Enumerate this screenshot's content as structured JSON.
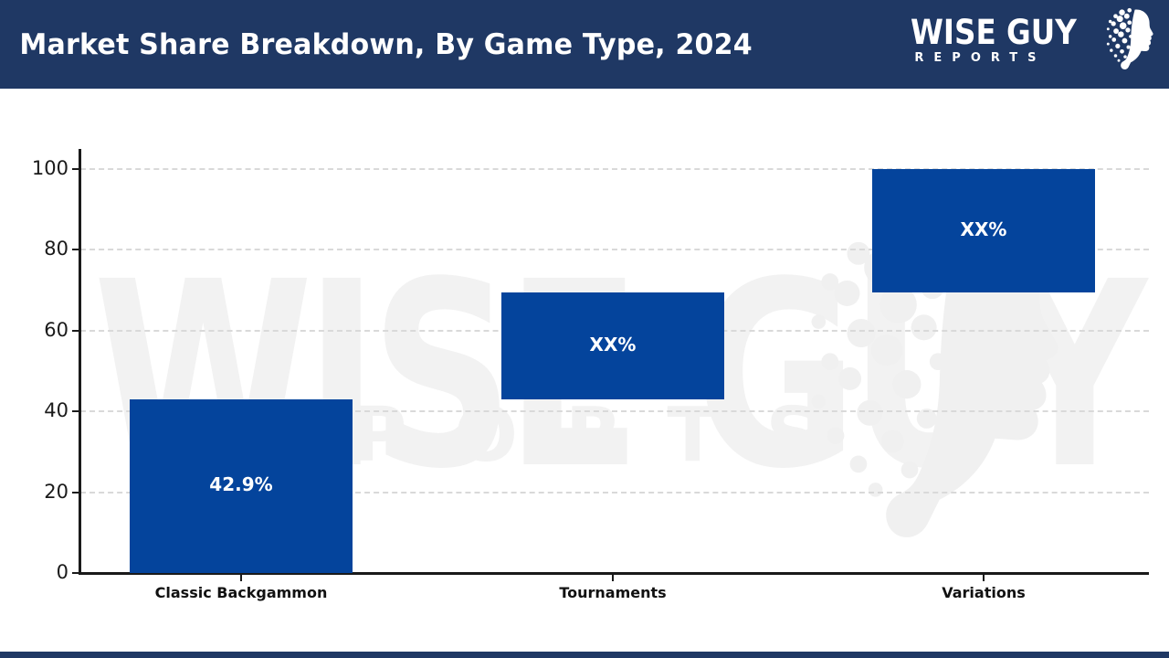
{
  "header": {
    "title": "Market Share Breakdown, By Game Type, 2024",
    "logo": {
      "line1": "WISE GUY",
      "line2": "REPORTS"
    }
  },
  "watermark": {
    "line1": "WISE GUY",
    "line2": "REPORTS"
  },
  "colors": {
    "header_bg": "#1f3864",
    "footer_bg": "#1f3864",
    "bar": "#04449c",
    "bar_value_text": "#ffffff",
    "grid": "#d9d9d9",
    "axis": "#1a1a1a",
    "tick_text": "#1a1a1a",
    "watermark_text": "#f2f2f2",
    "watermark_face": "#f0f0f0",
    "background": "#ffffff"
  },
  "chart_data": {
    "type": "bar",
    "subtype": "waterfall",
    "title": "Market Share Breakdown, By Game Type, 2024",
    "xlabel": "",
    "ylabel": "",
    "categories": [
      "Classic Backgammon",
      "Tournaments",
      "Variations"
    ],
    "segments": [
      {
        "category": "Classic Backgammon",
        "start": 0,
        "end": 42.9,
        "label": "42.9%"
      },
      {
        "category": "Tournaments",
        "start": 42.9,
        "end": 69.4,
        "label": "XX%"
      },
      {
        "category": "Variations",
        "start": 69.4,
        "end": 100,
        "label": "XX%"
      }
    ],
    "yticks": [
      0,
      20,
      40,
      60,
      80,
      100
    ],
    "ylim": [
      0,
      105
    ],
    "grid": "horizontal-dashed",
    "legend": "none"
  }
}
